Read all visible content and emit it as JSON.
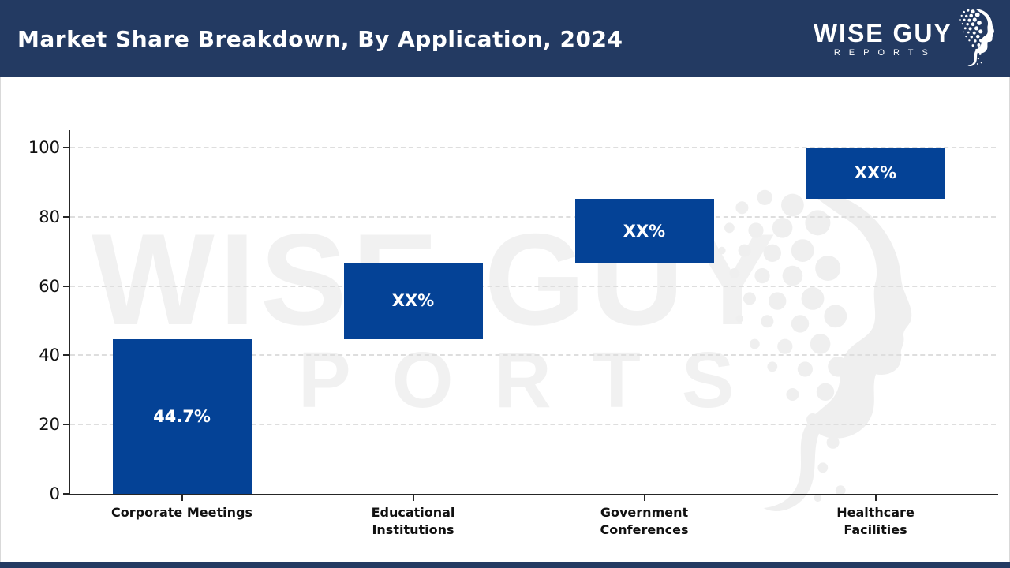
{
  "header": {
    "title": "Market Share Breakdown, By Application, 2024",
    "logo": {
      "line1": "WISE GUY",
      "line2": "REPORTS"
    }
  },
  "watermark": {
    "line1": "WISE GUY",
    "line2": "PORTS"
  },
  "style": {
    "header_bg": "#233a62",
    "bar_color": "#044296",
    "bar_label_color": "#ffffff",
    "grid_color": "#dedede",
    "axis_color": "#262626",
    "watermark_color": "#f1f1f1",
    "footer_strip_color": "#233a62"
  },
  "chart_data": {
    "type": "bar",
    "subtype": "waterfall",
    "title": "Market Share Breakdown, By Application, 2024",
    "xlabel": "",
    "ylabel": "",
    "ylim": [
      0,
      100
    ],
    "yticks": [
      0,
      20,
      40,
      60,
      80,
      100
    ],
    "grid": "horizontal-dashed",
    "legend": "none",
    "categories": [
      "Corporate Meetings",
      "Educational\nInstitutions",
      "Government\nConferences",
      "Healthcare\nFacilities"
    ],
    "segments": [
      {
        "category": "Corporate Meetings",
        "start": 0,
        "end": 44.7,
        "value": 44.7,
        "label": "44.7%"
      },
      {
        "category": "Educational Institutions",
        "start": 44.7,
        "end": 66.7,
        "value": 22.0,
        "label": "XX%"
      },
      {
        "category": "Government Conferences",
        "start": 66.7,
        "end": 85.2,
        "value": 18.5,
        "label": "XX%"
      },
      {
        "category": "Healthcare Facilities",
        "start": 85.2,
        "end": 100,
        "value": 14.8,
        "label": "XX%"
      }
    ]
  }
}
